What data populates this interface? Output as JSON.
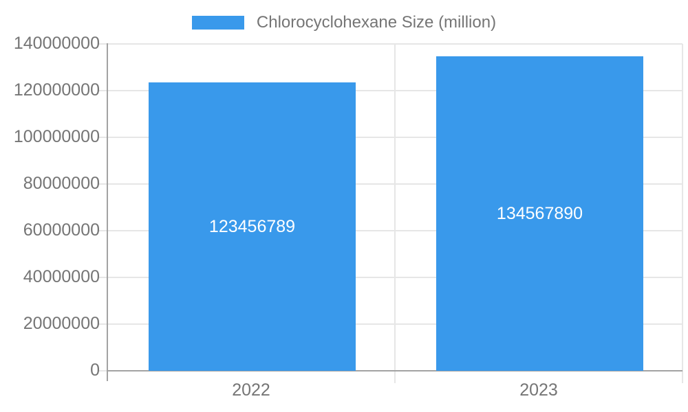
{
  "chart_data": {
    "type": "bar",
    "title": "",
    "xlabel": "",
    "ylabel": "",
    "categories": [
      "2022",
      "2023"
    ],
    "series": [
      {
        "name": "Chlorocyclohexane Size (million)",
        "values": [
          123456789,
          134567890
        ]
      }
    ],
    "bar_labels": [
      "123456789",
      "134567890"
    ],
    "ylim": [
      0,
      140000000
    ],
    "ytick_interval": 20000000,
    "ytick_labels": [
      "0",
      "20000000",
      "40000000",
      "60000000",
      "80000000",
      "100000000",
      "120000000",
      "140000000"
    ],
    "grid": true,
    "legend_position": "top-center"
  },
  "colors": {
    "bar": "#3999EB",
    "gridline": "#E6E6E6",
    "axis": "#A2A2A2",
    "axis_text": "#757575",
    "bar_label_text": "#FFFFFF",
    "background": "#FFFFFF"
  }
}
